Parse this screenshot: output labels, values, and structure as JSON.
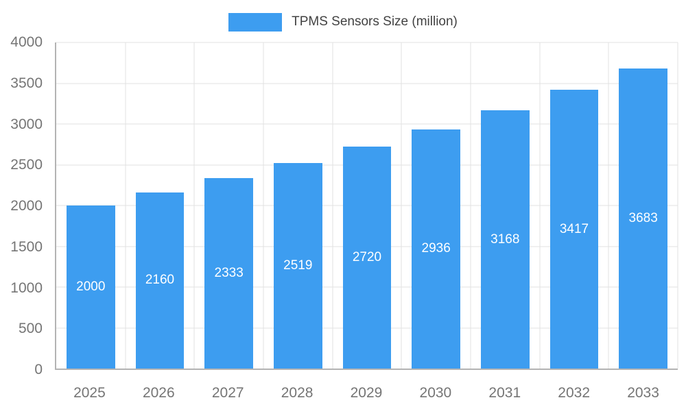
{
  "legend": {
    "label": "TPMS Sensors Size (million)",
    "color": "#3d9df0"
  },
  "chart_data": {
    "type": "bar",
    "title": "TPMS Sensors Size (million)",
    "categories": [
      "2025",
      "2026",
      "2027",
      "2028",
      "2029",
      "2030",
      "2031",
      "2032",
      "2033"
    ],
    "values": [
      2000,
      2160,
      2333,
      2519,
      2720,
      2936,
      3168,
      3417,
      3683
    ],
    "xlabel": "",
    "ylabel": "",
    "ylim": [
      0,
      4000
    ],
    "ytick_step": 500,
    "bar_color": "#3d9df0",
    "value_label_color": "#ffffff",
    "grid": true,
    "legend_position": "top"
  }
}
